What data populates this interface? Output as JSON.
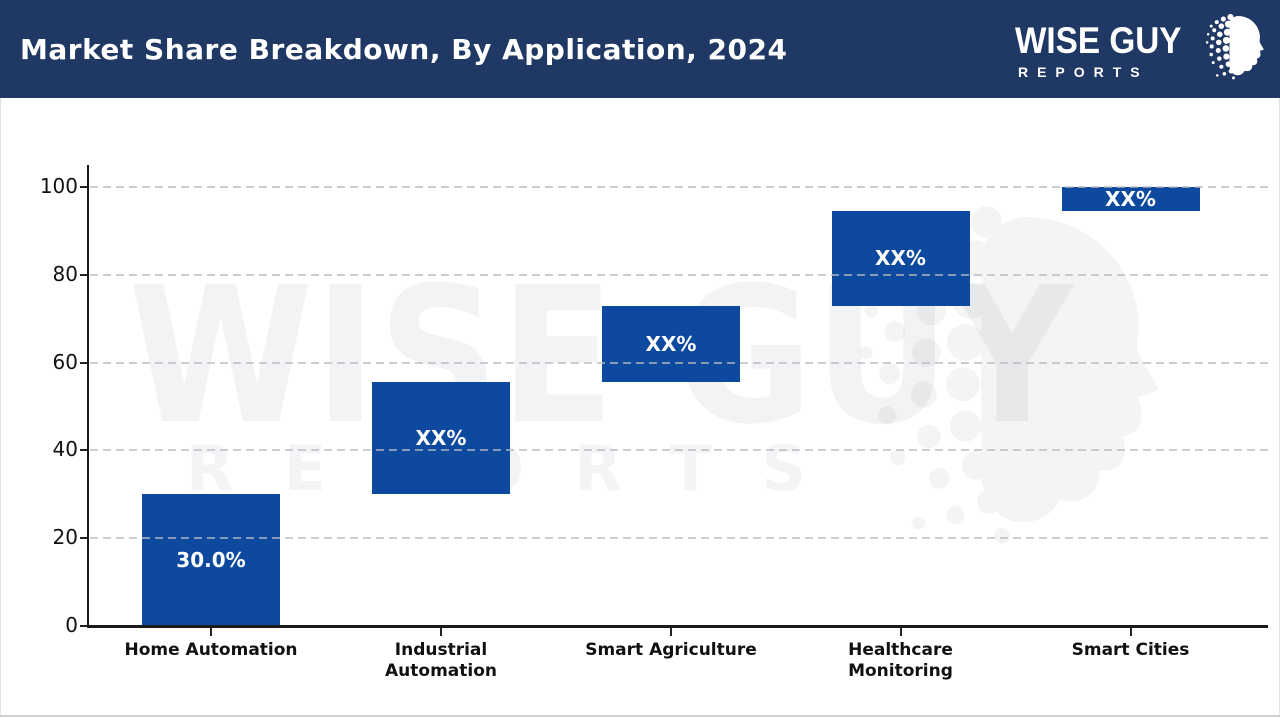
{
  "header": {
    "title": "Market Share Breakdown, By Application, 2024",
    "logo": {
      "brand": "WISE GUY",
      "sub": "REPORTS"
    }
  },
  "watermark": {
    "brand": "WISE GUY",
    "sub": "REPORTS"
  },
  "colors": {
    "header_bg": "#1f3864",
    "bar": "#0d4a9f",
    "grid": "#d9d9d9",
    "axis": "#1a1a1a",
    "bar_label": "#ffffff"
  },
  "chart_data": {
    "type": "bar",
    "subtype": "floating-stacked-breakdown",
    "title": "Market Share Breakdown, By Application, 2024",
    "categories": [
      "Home Automation",
      "Industrial Automation",
      "Smart Agriculture",
      "Healthcare Monitoring",
      "Smart Cities"
    ],
    "segments": [
      {
        "category": "Home Automation",
        "start": 0,
        "end": 30,
        "label": "30.0%"
      },
      {
        "category": "Industrial Automation",
        "start": 30,
        "end": 55.5,
        "label": "XX%"
      },
      {
        "category": "Smart Agriculture",
        "start": 55.5,
        "end": 73,
        "label": "XX%"
      },
      {
        "category": "Healthcare Monitoring",
        "start": 73,
        "end": 94.5,
        "label": "XX%"
      },
      {
        "category": "Smart Cities",
        "start": 94.5,
        "end": 100,
        "label": "XX%"
      }
    ],
    "ylim": [
      0,
      100
    ],
    "yticks": [
      0,
      20,
      40,
      60,
      80,
      100
    ],
    "xlabel": "",
    "ylabel": "",
    "grid": "horizontal-dashed",
    "legend": "none",
    "bar_color": "#0d4a9f"
  }
}
